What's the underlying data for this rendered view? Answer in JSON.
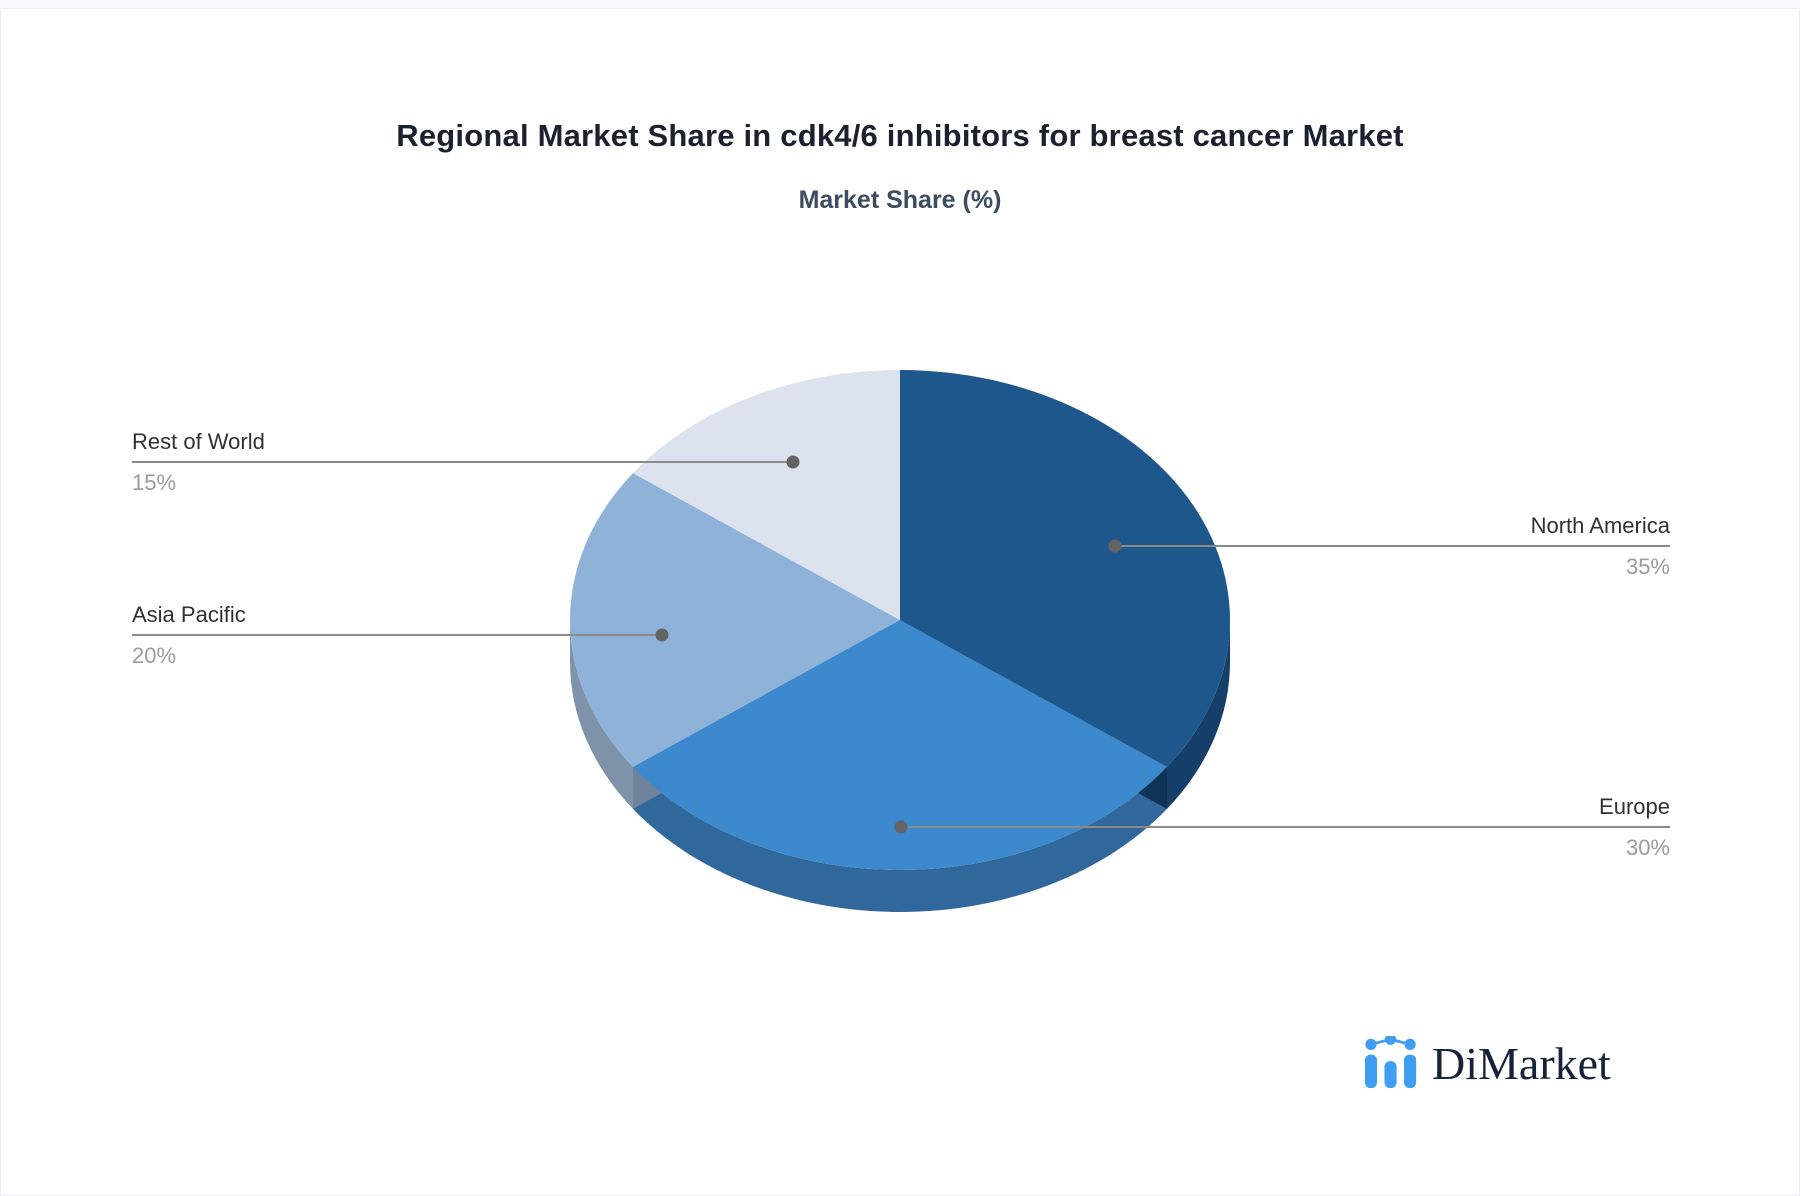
{
  "page": {
    "title": "Regional Market Share in cdk4/6 inhibitors for breast cancer Market",
    "subtitle": "Market Share (%)"
  },
  "chart_data": {
    "type": "pie",
    "style_3d": true,
    "title": "Regional Market Share in cdk4/6 inhibitors for breast cancer Market",
    "subtitle": "Market Share (%)",
    "unit": "percent",
    "direction": "clockwise",
    "start_angle_deg": 0,
    "categories": [
      "North America",
      "Europe",
      "Asia Pacific",
      "Rest of World"
    ],
    "values": [
      35,
      30,
      20,
      15
    ],
    "value_labels": [
      "35%",
      "30%",
      "20%",
      "15%"
    ],
    "slice_colors": [
      "#1d578c",
      "#3c89cd",
      "#8fb2d9",
      "#dce3ee"
    ],
    "slice_side_colors": [
      "#153f68",
      "#30689b",
      "#7e93a9",
      "#c6cfdc"
    ],
    "legend_position": "callout-labels",
    "callout_sides": [
      "right",
      "right",
      "left",
      "left"
    ]
  },
  "branding": {
    "logo_text": "DiMarket",
    "logo_icon": "bar-line-chart-icon",
    "logo_icon_color": "#3f9ef1",
    "logo_text_color": "#15233a"
  },
  "colors": {
    "background": "#ffffff",
    "title": "#1b212f",
    "subtitle": "#3d4c61",
    "callout_label": "#313131",
    "callout_value": "#9b9b9b",
    "leader_line": "#8a8a8a",
    "leader_dot": "#636363"
  }
}
